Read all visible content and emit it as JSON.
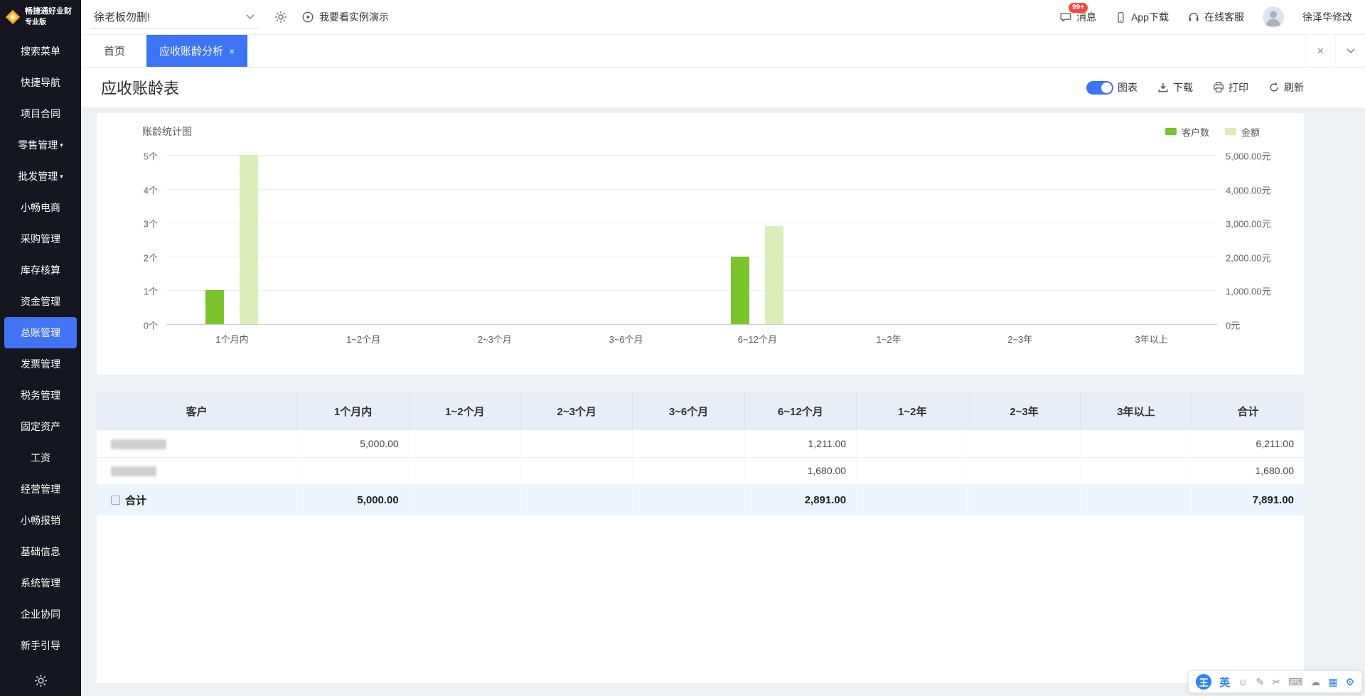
{
  "app": {
    "brand_line1": "畅捷通好业财",
    "brand_line2": "专业版"
  },
  "sidebar": {
    "items": [
      {
        "label": "搜索菜单",
        "active": false,
        "arrow": false
      },
      {
        "label": "快捷导航",
        "active": false,
        "arrow": false
      },
      {
        "label": "项目合同",
        "active": false,
        "arrow": false
      },
      {
        "label": "零售管理",
        "active": false,
        "arrow": true
      },
      {
        "label": "批发管理",
        "active": false,
        "arrow": true
      },
      {
        "label": "小畅电商",
        "active": false,
        "arrow": false
      },
      {
        "label": "采购管理",
        "active": false,
        "arrow": false
      },
      {
        "label": "库存核算",
        "active": false,
        "arrow": false
      },
      {
        "label": "资金管理",
        "active": false,
        "arrow": false
      },
      {
        "label": "总账管理",
        "active": true,
        "arrow": false
      },
      {
        "label": "发票管理",
        "active": false,
        "arrow": false
      },
      {
        "label": "税务管理",
        "active": false,
        "arrow": false
      },
      {
        "label": "固定资产",
        "active": false,
        "arrow": false
      },
      {
        "label": "工资",
        "active": false,
        "arrow": false
      },
      {
        "label": "经营管理",
        "active": false,
        "arrow": false
      },
      {
        "label": "小畅报销",
        "active": false,
        "arrow": false
      },
      {
        "label": "基础信息",
        "active": false,
        "arrow": false
      },
      {
        "label": "系统管理",
        "active": false,
        "arrow": false
      },
      {
        "label": "企业协同",
        "active": false,
        "arrow": false
      },
      {
        "label": "新手引导",
        "active": false,
        "arrow": false
      }
    ]
  },
  "topbar": {
    "company_selector": "徐老板勿删!",
    "demo_label": "我要看实例演示",
    "messages_label": "消息",
    "messages_badge": "99+",
    "app_download_label": "App下载",
    "support_label": "在线客服",
    "username": "徐泽华修改"
  },
  "tabs": [
    {
      "label": "首页",
      "active": false,
      "closable": false
    },
    {
      "label": "应收账龄分析",
      "active": true,
      "closable": true
    }
  ],
  "page": {
    "title": "应收账龄表",
    "chart_toggle_label": "图表",
    "chart_toggle_on": true,
    "download_label": "下载",
    "print_label": "打印",
    "refresh_label": "刷新"
  },
  "chart_data": {
    "type": "bar",
    "title": "账龄统计图",
    "categories": [
      "1个月内",
      "1~2个月",
      "2~3个月",
      "3~6个月",
      "6~12个月",
      "1~2年",
      "2~3年",
      "3年以上"
    ],
    "series": [
      {
        "name": "客户数",
        "axis": "left",
        "color": "#7cc42c",
        "values": [
          1,
          0,
          0,
          0,
          2,
          0,
          0,
          0
        ]
      },
      {
        "name": "金额",
        "axis": "right",
        "color": "#dcedb9",
        "values": [
          5000,
          0,
          0,
          0,
          2891,
          0,
          0,
          0
        ]
      }
    ],
    "left_axis": {
      "ticks": [
        "0个",
        "1个",
        "2个",
        "3个",
        "4个",
        "5个"
      ],
      "min": 0,
      "max": 5
    },
    "right_axis": {
      "ticks": [
        "0元",
        "1,000.00元",
        "2,000.00元",
        "3,000.00元",
        "4,000.00元",
        "5,000.00元"
      ],
      "min": 0,
      "max": 5000
    },
    "legend_position": "top-right",
    "grid": true
  },
  "table": {
    "headers": [
      "客户",
      "1个月内",
      "1~2个月",
      "2~3个月",
      "3~6个月",
      "6~12个月",
      "1~2年",
      "2~3年",
      "3年以上",
      "合计"
    ],
    "rows": [
      {
        "redacted": true,
        "values": [
          "5,000.00",
          "",
          "",
          "",
          "1,211.00",
          "",
          "",
          "",
          "6,211.00"
        ]
      },
      {
        "redacted": true,
        "values": [
          "",
          "",
          "",
          "",
          "1,680.00",
          "",
          "",
          "",
          "1,680.00"
        ]
      }
    ],
    "total": {
      "label": "合计",
      "values": [
        "5,000.00",
        "",
        "",
        "",
        "2,891.00",
        "",
        "",
        "",
        "7,891.00"
      ]
    }
  },
  "ime": {
    "logo_char": "王",
    "mode_label": "英",
    "tools": [
      {
        "name": "emoji-icon",
        "glyph": "☺",
        "accent": false
      },
      {
        "name": "pen-icon",
        "glyph": "✎",
        "accent": false
      },
      {
        "name": "scissors-icon",
        "glyph": "✂",
        "accent": false
      },
      {
        "name": "keyboard-icon",
        "glyph": "⌨",
        "accent": false
      },
      {
        "name": "cloud-icon",
        "glyph": "☁",
        "accent": false
      },
      {
        "name": "grid-icon",
        "glyph": "▦",
        "accent": true
      },
      {
        "name": "gear-icon",
        "glyph": "⚙",
        "accent": true
      }
    ]
  },
  "colors": {
    "accent_blue": "#3d74f5",
    "sidebar_bg": "#15161f",
    "series_green": "#7cc42c",
    "series_light_green": "#dcedb9",
    "badge_red": "#f5483d",
    "table_header_bg": "#e9edf5",
    "total_row_bg": "#edf4fd"
  }
}
